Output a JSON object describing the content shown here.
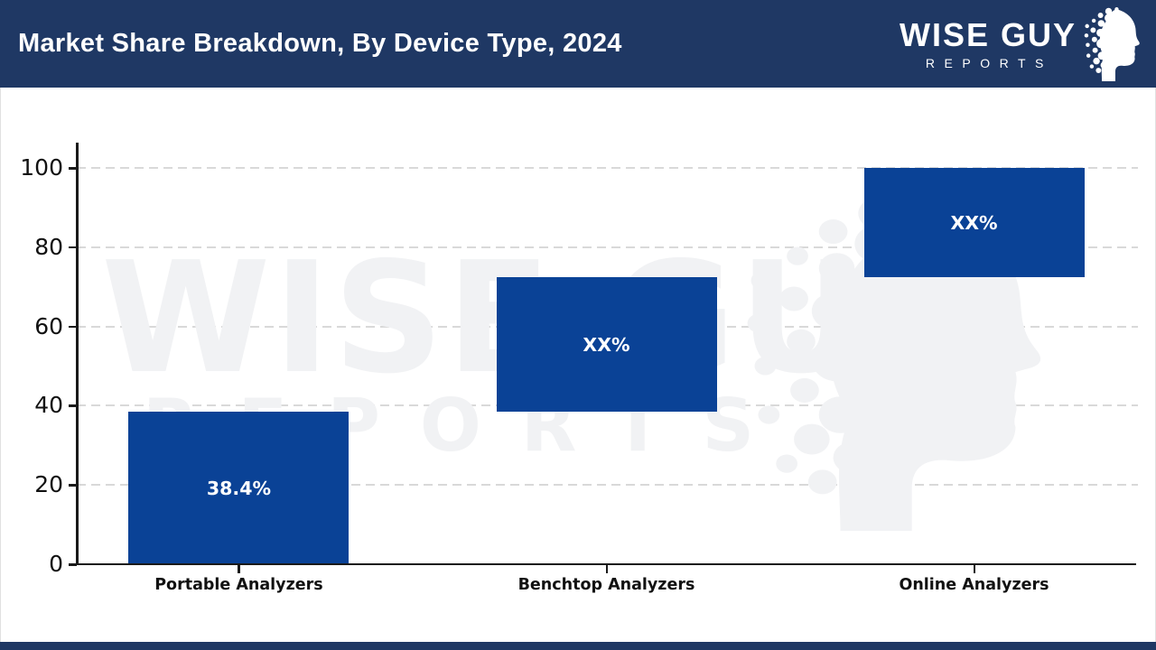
{
  "header": {
    "title": "Market Share Breakdown, By Device Type, 2024",
    "logo": {
      "primary": "WISE GUY",
      "secondary": "REPORTS"
    }
  },
  "watermark": {
    "primary": "WISE GUY",
    "secondary": "REPORTS"
  },
  "chart_data": {
    "type": "bar",
    "subtype": "stacked-waterfall",
    "title": "Market Share Breakdown, By Device Type, 2024",
    "categories": [
      "Portable Analyzers",
      "Benchtop Analyzers",
      "Online Analyzers"
    ],
    "segments": [
      {
        "category": "Portable Analyzers",
        "label": "38.4%",
        "start": 0,
        "end": 38.4
      },
      {
        "category": "Benchtop Analyzers",
        "label": "XX%",
        "start": 38.4,
        "end": 72.4
      },
      {
        "category": "Online Analyzers",
        "label": "XX%",
        "start": 72.4,
        "end": 100
      }
    ],
    "xlabel": "",
    "ylabel": "",
    "ylim": [
      0,
      100
    ],
    "yticks": [
      0,
      20,
      40,
      60,
      80,
      100
    ],
    "grid": "horizontal-dashed",
    "legend": false,
    "bar_color": "#0a4296",
    "value_label_color": "#ffffff"
  },
  "colors": {
    "header_bg": "#1f3864",
    "footer_bg": "#1f3864",
    "bar": "#0a4296",
    "gridline": "#d9d9d9",
    "axis": "#1a1a1a",
    "watermark": "#f1f2f4"
  }
}
